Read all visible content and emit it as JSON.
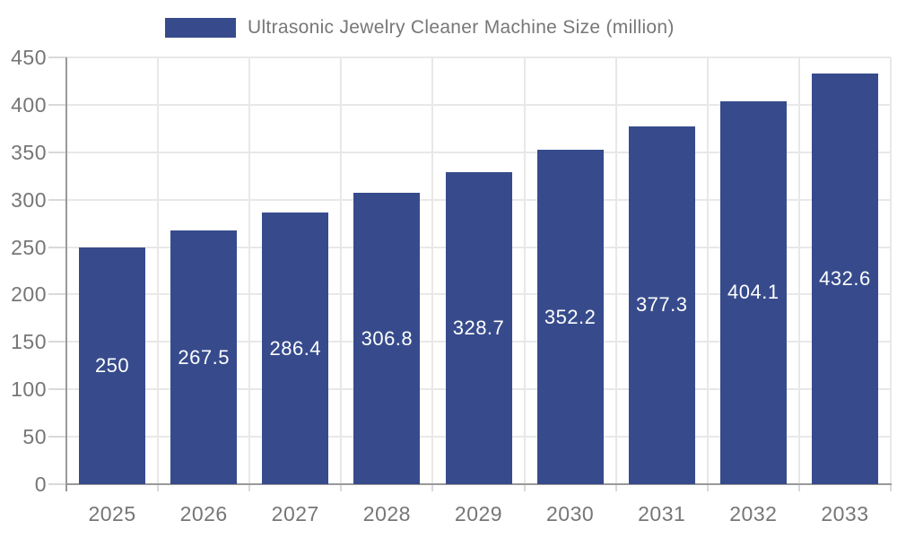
{
  "legend": {
    "label": "Ultrasonic Jewelry Cleaner Machine Size (million)",
    "swatch_color": "#374B8C"
  },
  "chart_data": {
    "type": "bar",
    "title": "",
    "categories": [
      "2025",
      "2026",
      "2027",
      "2028",
      "2029",
      "2030",
      "2031",
      "2032",
      "2033"
    ],
    "series": [
      {
        "name": "Ultrasonic Jewelry Cleaner Machine Size (million)",
        "values": [
          250,
          267.5,
          286.4,
          306.8,
          328.7,
          352.2,
          377.3,
          404.1,
          432.6
        ]
      }
    ],
    "value_labels": [
      "250",
      "267.5",
      "286.4",
      "306.8",
      "328.7",
      "352.2",
      "377.3",
      "404.1",
      "432.6"
    ],
    "xlabel": "",
    "ylabel": "",
    "ylim": [
      0,
      450
    ],
    "ytick_step": 50,
    "ytick_labels": [
      "0",
      "50",
      "100",
      "150",
      "200",
      "250",
      "300",
      "350",
      "400",
      "450"
    ],
    "grid": true,
    "legend_position": "top",
    "bar_color": "#374B8C",
    "value_label_color": "#FFFFFF",
    "axis_label_color": "#767676",
    "grid_color": "#E8E8E8",
    "tick_color": "#D9D9D9",
    "axis_line_color": "#999999"
  }
}
